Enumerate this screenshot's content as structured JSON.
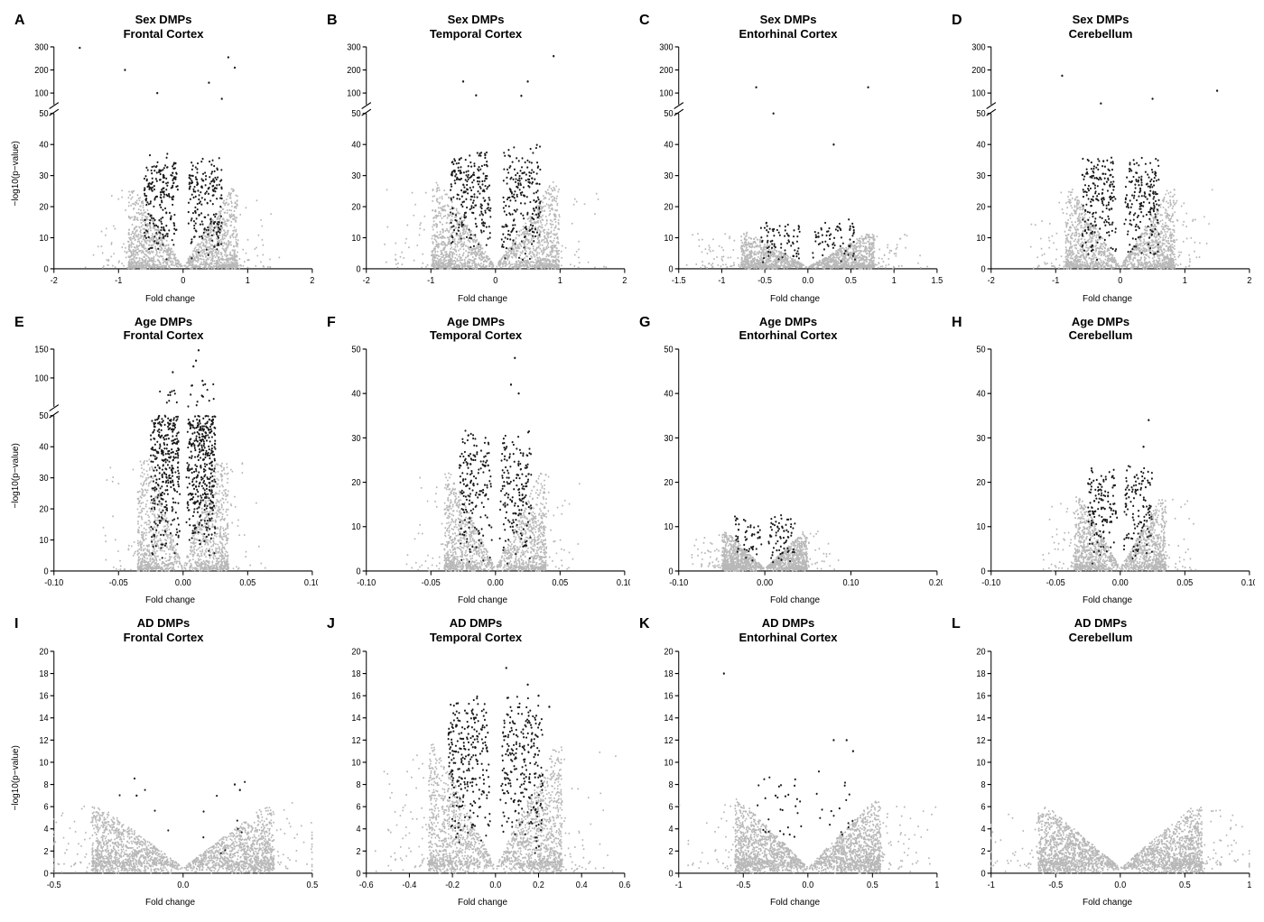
{
  "figure": {
    "background": "#ffffff",
    "grid_rows": 3,
    "grid_cols": 4,
    "ylabel_text": "−log10(p−value)",
    "xlabel_text": "Fold change",
    "colors": {
      "significant": "#1a1a1a",
      "nonsignificant": "#b8b8b8",
      "axis": "#000000"
    },
    "panels": [
      {
        "letter": "A",
        "title": "Sex DMPs\nFrontal Cortex",
        "type": "volcano",
        "xlim": [
          -2,
          2
        ],
        "xticks": [
          -2,
          -1,
          0,
          1,
          2
        ],
        "ylim": [
          0,
          50
        ],
        "yticks": [
          0,
          10,
          20,
          30,
          40,
          50
        ],
        "y_break": true,
        "ylim_upper": [
          50,
          300
        ],
        "yticks_upper": [
          100,
          200,
          300
        ],
        "show_ylabel": true,
        "cloud": {
          "x_spread": 0.6,
          "y_dense_max": 28,
          "n_sig": 420,
          "n_non": 1600,
          "tall_points": [
            [
              -1.6,
              296
            ],
            [
              -0.9,
              200
            ],
            [
              0.7,
              255
            ],
            [
              0.8,
              210
            ],
            [
              0.4,
              145
            ],
            [
              -0.4,
              100
            ],
            [
              0.6,
              75
            ]
          ]
        }
      },
      {
        "letter": "B",
        "title": "Sex DMPs\nTemporal Cortex",
        "type": "volcano",
        "xlim": [
          -2,
          2
        ],
        "xticks": [
          -2,
          -1,
          0,
          1,
          2
        ],
        "ylim": [
          0,
          50
        ],
        "yticks": [
          0,
          10,
          20,
          30,
          40,
          50
        ],
        "y_break": true,
        "ylim_upper": [
          50,
          300
        ],
        "yticks_upper": [
          100,
          200,
          300
        ],
        "show_ylabel": false,
        "cloud": {
          "x_spread": 0.7,
          "y_dense_max": 30,
          "n_sig": 450,
          "n_non": 1700,
          "tall_points": [
            [
              0.9,
              260
            ],
            [
              -0.5,
              150
            ],
            [
              0.5,
              150
            ],
            [
              -0.3,
              90
            ],
            [
              0.4,
              88
            ]
          ]
        }
      },
      {
        "letter": "C",
        "title": "Sex DMPs\nEntorhinal Cortex",
        "type": "volcano",
        "xlim": [
          -1.5,
          1.5
        ],
        "xticks": [
          -1.5,
          -1,
          -0.5,
          0,
          0.5,
          1,
          1.5
        ],
        "ylim": [
          0,
          50
        ],
        "yticks": [
          0,
          10,
          20,
          30,
          40,
          50
        ],
        "y_break": true,
        "ylim_upper": [
          50,
          300
        ],
        "yticks_upper": [
          100,
          200,
          300
        ],
        "show_ylabel": false,
        "cloud": {
          "x_spread": 0.55,
          "y_dense_max": 12,
          "n_sig": 140,
          "n_non": 1700,
          "tall_points": [
            [
              -0.6,
              125
            ],
            [
              0.7,
              125
            ],
            [
              -0.4,
              50
            ],
            [
              0.3,
              40
            ]
          ]
        }
      },
      {
        "letter": "D",
        "title": "Sex DMPs\nCerebellum",
        "type": "volcano",
        "xlim": [
          -2,
          2
        ],
        "xticks": [
          -2,
          -1,
          0,
          1,
          2
        ],
        "ylim": [
          0,
          50
        ],
        "yticks": [
          0,
          10,
          20,
          30,
          40,
          50
        ],
        "y_break": true,
        "ylim_upper": [
          50,
          300
        ],
        "yticks_upper": [
          100,
          200,
          300
        ],
        "show_ylabel": false,
        "cloud": {
          "x_spread": 0.6,
          "y_dense_max": 28,
          "n_sig": 380,
          "n_non": 1600,
          "tall_points": [
            [
              -0.9,
              175
            ],
            [
              1.5,
              110
            ],
            [
              0.5,
              75
            ],
            [
              -0.3,
              55
            ]
          ]
        }
      },
      {
        "letter": "E",
        "title": "Age DMPs\nFrontal Cortex",
        "type": "volcano",
        "xlim": [
          -0.1,
          0.1
        ],
        "xticks": [
          -0.1,
          -0.05,
          0.0,
          0.05,
          0.1
        ],
        "ylim": [
          0,
          50
        ],
        "yticks": [
          0,
          10,
          20,
          30,
          40,
          50
        ],
        "y_break": true,
        "ylim_upper": [
          50,
          150
        ],
        "yticks_upper": [
          100,
          150
        ],
        "show_ylabel": true,
        "cloud": {
          "x_spread": 0.025,
          "y_dense_max": 48,
          "n_sig": 900,
          "n_non": 1400,
          "tall_points": [
            [
              0.012,
              148
            ],
            [
              0.01,
              130
            ],
            [
              0.008,
              120
            ],
            [
              -0.008,
              110
            ],
            [
              0.015,
              95
            ],
            [
              -0.01,
              75
            ]
          ]
        }
      },
      {
        "letter": "F",
        "title": "Age DMPs\nTemporal Cortex",
        "type": "volcano",
        "xlim": [
          -0.1,
          0.1
        ],
        "xticks": [
          -0.1,
          -0.05,
          0.0,
          0.05,
          0.1
        ],
        "ylim": [
          0,
          50
        ],
        "yticks": [
          0,
          10,
          20,
          30,
          40,
          50
        ],
        "y_break": false,
        "show_ylabel": false,
        "cloud": {
          "x_spread": 0.028,
          "y_dense_max": 24,
          "n_sig": 350,
          "n_non": 1500,
          "tall_points": [
            [
              0.015,
              48
            ],
            [
              0.012,
              42
            ],
            [
              0.018,
              40
            ],
            [
              -0.012,
              18
            ]
          ]
        }
      },
      {
        "letter": "G",
        "title": "Age DMPs\nEntorhinal Cortex",
        "type": "volcano",
        "xlim": [
          -0.1,
          0.2
        ],
        "xticks": [
          -0.1,
          0.0,
          0.1,
          0.2
        ],
        "ylim": [
          0,
          50
        ],
        "yticks": [
          0,
          10,
          20,
          30,
          40,
          50
        ],
        "y_break": false,
        "show_ylabel": false,
        "cloud": {
          "x_spread": 0.035,
          "y_dense_max": 9,
          "n_sig": 120,
          "n_non": 1600,
          "tall_points": [
            [
              0.02,
              10
            ],
            [
              -0.015,
              8
            ]
          ]
        }
      },
      {
        "letter": "H",
        "title": "Age DMPs\nCerebellum",
        "type": "volcano",
        "xlim": [
          -0.1,
          0.1
        ],
        "xticks": [
          -0.1,
          -0.05,
          0.0,
          0.05,
          0.1
        ],
        "ylim": [
          0,
          50
        ],
        "yticks": [
          0,
          10,
          20,
          30,
          40,
          50
        ],
        "y_break": false,
        "show_ylabel": false,
        "cloud": {
          "x_spread": 0.025,
          "y_dense_max": 18,
          "n_sig": 260,
          "n_non": 1500,
          "tall_points": [
            [
              0.022,
              34
            ],
            [
              0.018,
              28
            ],
            [
              -0.012,
              14
            ]
          ]
        }
      },
      {
        "letter": "I",
        "title": "AD DMPs\nFrontal Cortex",
        "type": "volcano",
        "xlim": [
          -0.5,
          0.5
        ],
        "xticks": [
          -0.5,
          0.0,
          0.5
        ],
        "ylim": [
          0,
          20
        ],
        "yticks": [
          0,
          2,
          4,
          6,
          8,
          10,
          12,
          14,
          16,
          18,
          20
        ],
        "y_break": false,
        "show_ylabel": true,
        "cloud": {
          "x_spread": 0.25,
          "y_dense_max": 6,
          "n_sig": 14,
          "n_non": 2200,
          "tall_points": [
            [
              -0.18,
              7
            ],
            [
              0.2,
              8
            ],
            [
              0.22,
              7.5
            ]
          ]
        }
      },
      {
        "letter": "J",
        "title": "AD DMPs\nTemporal Cortex",
        "type": "volcano",
        "xlim": [
          -0.6,
          0.6
        ],
        "xticks": [
          -0.6,
          -0.4,
          -0.2,
          0.0,
          0.2,
          0.4,
          0.6
        ],
        "ylim": [
          0,
          20
        ],
        "yticks": [
          0,
          2,
          4,
          6,
          8,
          10,
          12,
          14,
          16,
          18,
          20
        ],
        "y_break": false,
        "show_ylabel": false,
        "cloud": {
          "x_spread": 0.22,
          "y_dense_max": 12,
          "n_sig": 520,
          "n_non": 2000,
          "tall_points": [
            [
              0.05,
              18.5
            ],
            [
              0.15,
              17
            ],
            [
              0.2,
              16
            ],
            [
              -0.1,
              14
            ],
            [
              0.25,
              15
            ]
          ]
        }
      },
      {
        "letter": "K",
        "title": "AD DMPs\nEntorhinal Cortex",
        "type": "volcano",
        "xlim": [
          -1.0,
          1.0
        ],
        "xticks": [
          -1.0,
          -0.5,
          0.0,
          0.5,
          1.0
        ],
        "ylim": [
          0,
          20
        ],
        "yticks": [
          0,
          2,
          4,
          6,
          8,
          10,
          12,
          14,
          16,
          18,
          20
        ],
        "y_break": false,
        "show_ylabel": false,
        "cloud": {
          "x_spread": 0.4,
          "y_dense_max": 6.5,
          "n_sig": 45,
          "n_non": 2300,
          "tall_points": [
            [
              -0.65,
              18
            ],
            [
              0.2,
              12
            ],
            [
              0.3,
              12
            ],
            [
              0.35,
              11
            ],
            [
              -0.25,
              7
            ]
          ]
        }
      },
      {
        "letter": "L",
        "title": "AD DMPs\nCerebellum",
        "type": "volcano",
        "xlim": [
          -1.0,
          1.0
        ],
        "xticks": [
          -1.0,
          -0.5,
          0.0,
          0.5,
          1.0
        ],
        "ylim": [
          0,
          20
        ],
        "yticks": [
          0,
          2,
          4,
          6,
          8,
          10,
          12,
          14,
          16,
          18,
          20
        ],
        "y_break": false,
        "show_ylabel": false,
        "cloud": {
          "x_spread": 0.45,
          "y_dense_max": 6,
          "n_sig": 0,
          "n_non": 2400,
          "tall_points": []
        }
      }
    ]
  }
}
